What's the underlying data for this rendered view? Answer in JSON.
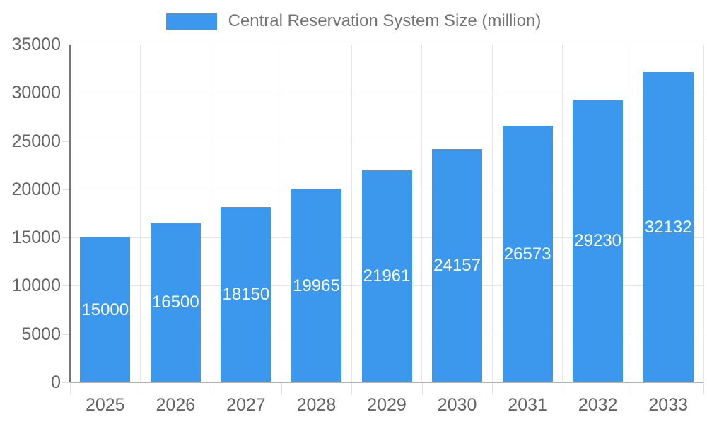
{
  "chart_data": {
    "type": "bar",
    "title": "Central Reservation System Size (million)",
    "categories": [
      "2025",
      "2026",
      "2027",
      "2028",
      "2029",
      "2030",
      "2031",
      "2032",
      "2033"
    ],
    "values": [
      15000,
      16500,
      18150,
      19965,
      21961,
      24157,
      26573,
      29230,
      32132
    ],
    "series": [
      {
        "name": "Central Reservation System Size (million)",
        "values": [
          15000,
          16500,
          18150,
          19965,
          21961,
          24157,
          26573,
          29230,
          32132
        ]
      }
    ],
    "xlabel": "",
    "ylabel": "",
    "ylim": [
      0,
      35000
    ],
    "ytick_step": 5000,
    "ytick_labels": [
      "0",
      "5000",
      "10000",
      "15000",
      "20000",
      "25000",
      "30000",
      "35000"
    ],
    "grid": true,
    "legend_position": "top-center",
    "bar_label_position": "inside-center",
    "colors": {
      "bar": "#3b98ec",
      "grid": "#e6e6e6",
      "axis_line": "#757575",
      "baseline": "#b3b3b3",
      "tick": "#e0e0e0",
      "axis_text": "#666666",
      "legend_text": "#757575",
      "bar_label_text": "#ffffff",
      "background": "#ffffff"
    }
  }
}
